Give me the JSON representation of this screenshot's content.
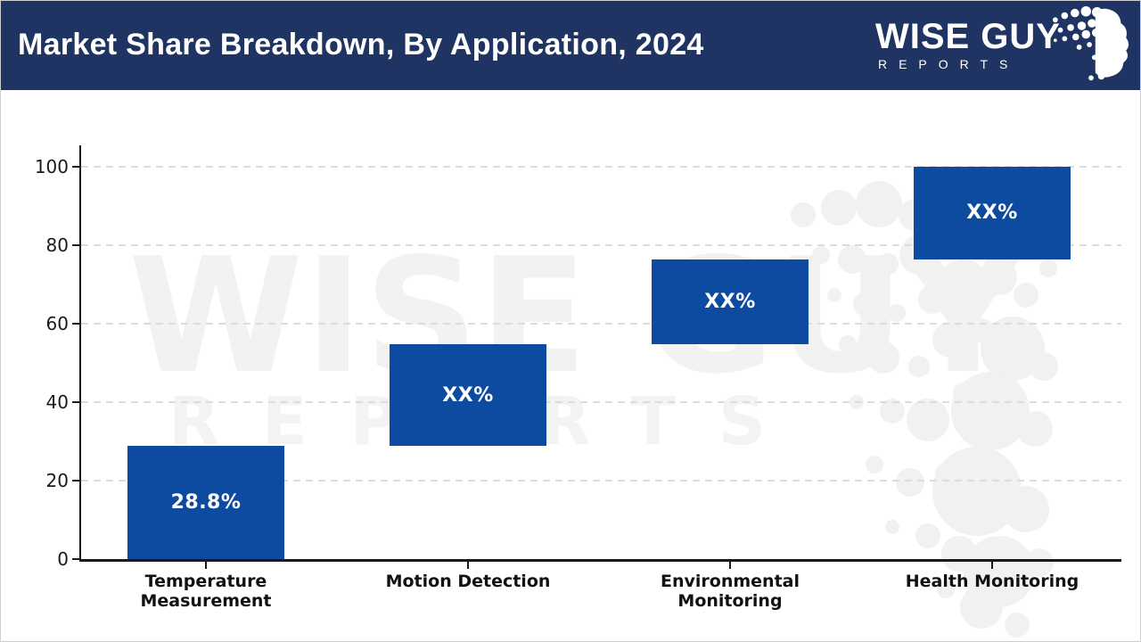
{
  "header": {
    "title": "Market Share Breakdown, By Application, 2024",
    "logo": {
      "wordmark": "WISE GUY",
      "subtext": "REPORTS"
    }
  },
  "watermark": {
    "wordmark": "WISE GUY",
    "subtext": "REPORTS"
  },
  "chart_data": {
    "type": "bar",
    "subtype": "waterfall",
    "title": "Market Share Breakdown, By Application, 2024",
    "categories": [
      "Temperature Measurement",
      "Motion Detection",
      "Environmental Monitoring",
      "Health Monitoring"
    ],
    "tick_label_lines": [
      [
        "Temperature",
        "Measurement"
      ],
      [
        "Motion Detection"
      ],
      [
        "Environmental",
        "Monitoring"
      ],
      [
        "Health Monitoring"
      ]
    ],
    "bars": [
      {
        "category": "Temperature Measurement",
        "label": "28.8%",
        "start": 0,
        "end": 28.8
      },
      {
        "category": "Motion Detection",
        "label": "XX%",
        "start": 28.8,
        "end": 54.8
      },
      {
        "category": "Environmental Monitoring",
        "label": "XX%",
        "start": 54.8,
        "end": 76.4
      },
      {
        "category": "Health Monitoring",
        "label": "XX%",
        "start": 76.4,
        "end": 100
      }
    ],
    "yticks": [
      0,
      20,
      40,
      60,
      80,
      100
    ],
    "ylim": [
      0,
      105
    ],
    "xlabel": "",
    "ylabel": "",
    "grid": "horizontal-dashed",
    "legend": "none",
    "colors": {
      "bar": "#0c4ba0",
      "header_bg": "#1f3462",
      "grid": "#dcdcdc",
      "axis": "#1a1a1a",
      "bar_label": "#ffffff",
      "watermark": "#f2f2f2"
    }
  }
}
